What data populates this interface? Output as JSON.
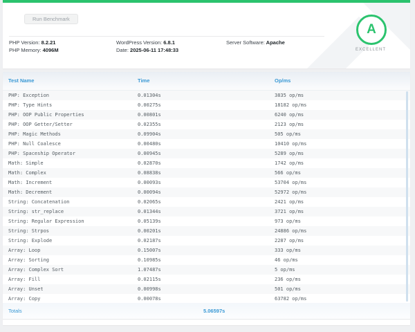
{
  "colors": {
    "accent_green": "#2bc36e",
    "accent_blue": "#3a99d5",
    "page_background": "#eff0f2"
  },
  "toolbar": {
    "run_label": "Run Benchmark"
  },
  "info_columns": [
    {
      "lines": [
        {
          "label": "PHP Version:",
          "value": "8.2.21"
        },
        {
          "label": "PHP Memory:",
          "value": "4096M"
        }
      ]
    },
    {
      "lines": [
        {
          "label": "WordPress Version:",
          "value": "6.8.1"
        },
        {
          "label": "Date:",
          "value": "2025-06-11 17:48:33"
        }
      ]
    },
    {
      "lines": [
        {
          "label": "Server Software:",
          "value": "Apache"
        }
      ]
    }
  ],
  "grade": {
    "letter": "A",
    "rating": "EXCELLENT"
  },
  "table": {
    "columns": [
      "Test Name",
      "Time",
      "Op/ms"
    ],
    "rows": [
      {
        "name": "PHP: Exception",
        "time": "0.01304s",
        "ops": "3835 op/ms"
      },
      {
        "name": "PHP: Type Hints",
        "time": "0.00275s",
        "ops": "18182 op/ms"
      },
      {
        "name": "PHP: OOP Public Properties",
        "time": "0.00801s",
        "ops": "6240 op/ms"
      },
      {
        "name": "PHP: OOP Getter/Setter",
        "time": "0.02355s",
        "ops": "2123 op/ms"
      },
      {
        "name": "PHP: Magic Methods",
        "time": "0.09904s",
        "ops": "505 op/ms"
      },
      {
        "name": "PHP: Null Coalesce",
        "time": "0.00480s",
        "ops": "10410 op/ms"
      },
      {
        "name": "PHP: Spaceship Operator",
        "time": "0.00945s",
        "ops": "5289 op/ms"
      },
      {
        "name": "Math: Simple",
        "time": "0.02870s",
        "ops": "1742 op/ms"
      },
      {
        "name": "Math: Complex",
        "time": "0.08838s",
        "ops": "566 op/ms"
      },
      {
        "name": "Math: Increment",
        "time": "0.00093s",
        "ops": "53704 op/ms"
      },
      {
        "name": "Math: Decrement",
        "time": "0.00094s",
        "ops": "52972 op/ms"
      },
      {
        "name": "String: Concatenation",
        "time": "0.02065s",
        "ops": "2421 op/ms"
      },
      {
        "name": "String: str_replace",
        "time": "0.01344s",
        "ops": "3721 op/ms"
      },
      {
        "name": "String: Regular Expression",
        "time": "0.05139s",
        "ops": "973 op/ms"
      },
      {
        "name": "String: Strpos",
        "time": "0.00201s",
        "ops": "24886 op/ms"
      },
      {
        "name": "String: Explode",
        "time": "0.02187s",
        "ops": "2287 op/ms"
      },
      {
        "name": "Array: Loop",
        "time": "0.15007s",
        "ops": "333 op/ms"
      },
      {
        "name": "Array: Sorting",
        "time": "0.10985s",
        "ops": "46 op/ms"
      },
      {
        "name": "Array: Complex Sort",
        "time": "1.07487s",
        "ops": "5 op/ms"
      },
      {
        "name": "Array: Fill",
        "time": "0.02115s",
        "ops": "236 op/ms"
      },
      {
        "name": "Array: Unset",
        "time": "0.00998s",
        "ops": "501 op/ms"
      },
      {
        "name": "Array: Copy",
        "time": "0.00078s",
        "ops": "63782 op/ms"
      }
    ],
    "totals_label": "Totals",
    "total_time": "5.06597s"
  }
}
